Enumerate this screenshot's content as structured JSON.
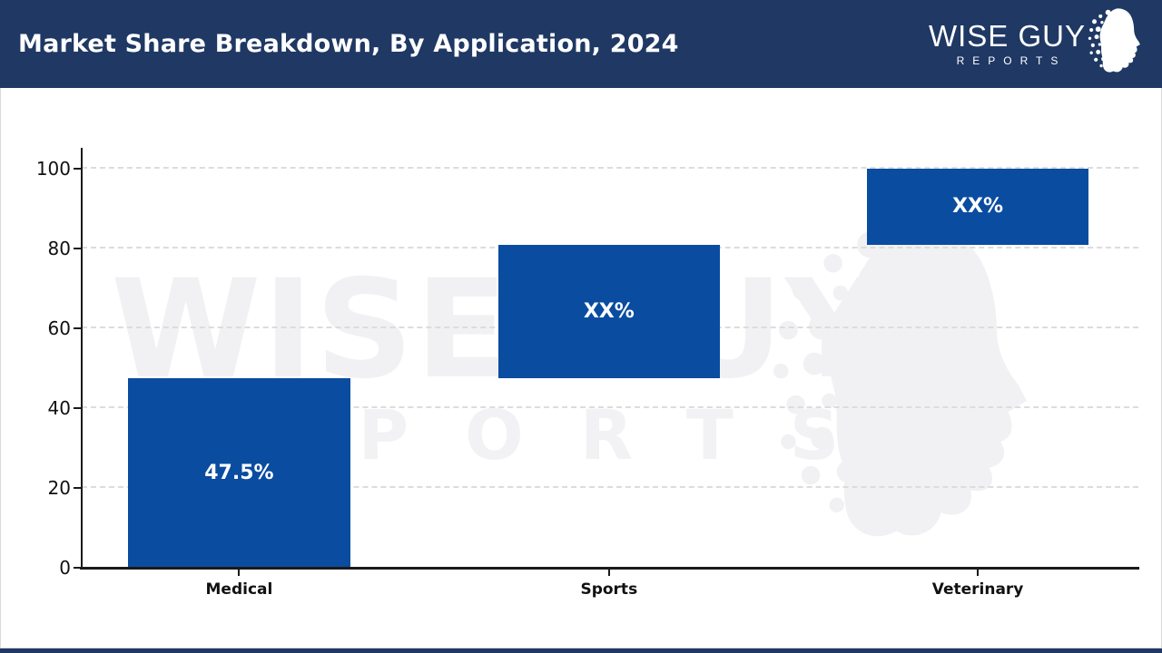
{
  "header": {
    "title": "Market Share Breakdown, By Application, 2024",
    "logo": {
      "name": "WISE GUY",
      "sub": "REPORTS"
    }
  },
  "watermark": {
    "line1": "WISE GUY",
    "line2": "REPORTS"
  },
  "chart_data": {
    "type": "bar",
    "variant": "stacked-waterfall",
    "title": "Market Share Breakdown, By Application, 2024",
    "categories": [
      "Medical",
      "Sports",
      "Veterinary"
    ],
    "segments": [
      {
        "category": "Medical",
        "start": 0,
        "end": 47.5,
        "label": "47.5%"
      },
      {
        "category": "Sports",
        "start": 47.5,
        "end": 81,
        "label": "XX%"
      },
      {
        "category": "Veterinary",
        "start": 81,
        "end": 100,
        "label": "XX%"
      }
    ],
    "ylim": [
      0,
      100
    ],
    "yticks": [
      0,
      20,
      40,
      60,
      80,
      100
    ],
    "xlabel": "",
    "ylabel": "",
    "grid": "horizontal-dashed",
    "legend": "none",
    "bar_color": "#0a4ca0",
    "bar_label_color": "#ffffff",
    "layout": {
      "bar_centers_pct": [
        14.9,
        49.9,
        84.8
      ],
      "bar_width_pct": 21
    }
  },
  "colors": {
    "header_bg": "#1f3864",
    "footer_bg": "#1f3864",
    "bar": "#0a4ca0",
    "grid": "#dcdcdc",
    "axis": "#1a1a1a",
    "watermark": "#f1f1f3",
    "frame_border": "#d9d9d9"
  }
}
